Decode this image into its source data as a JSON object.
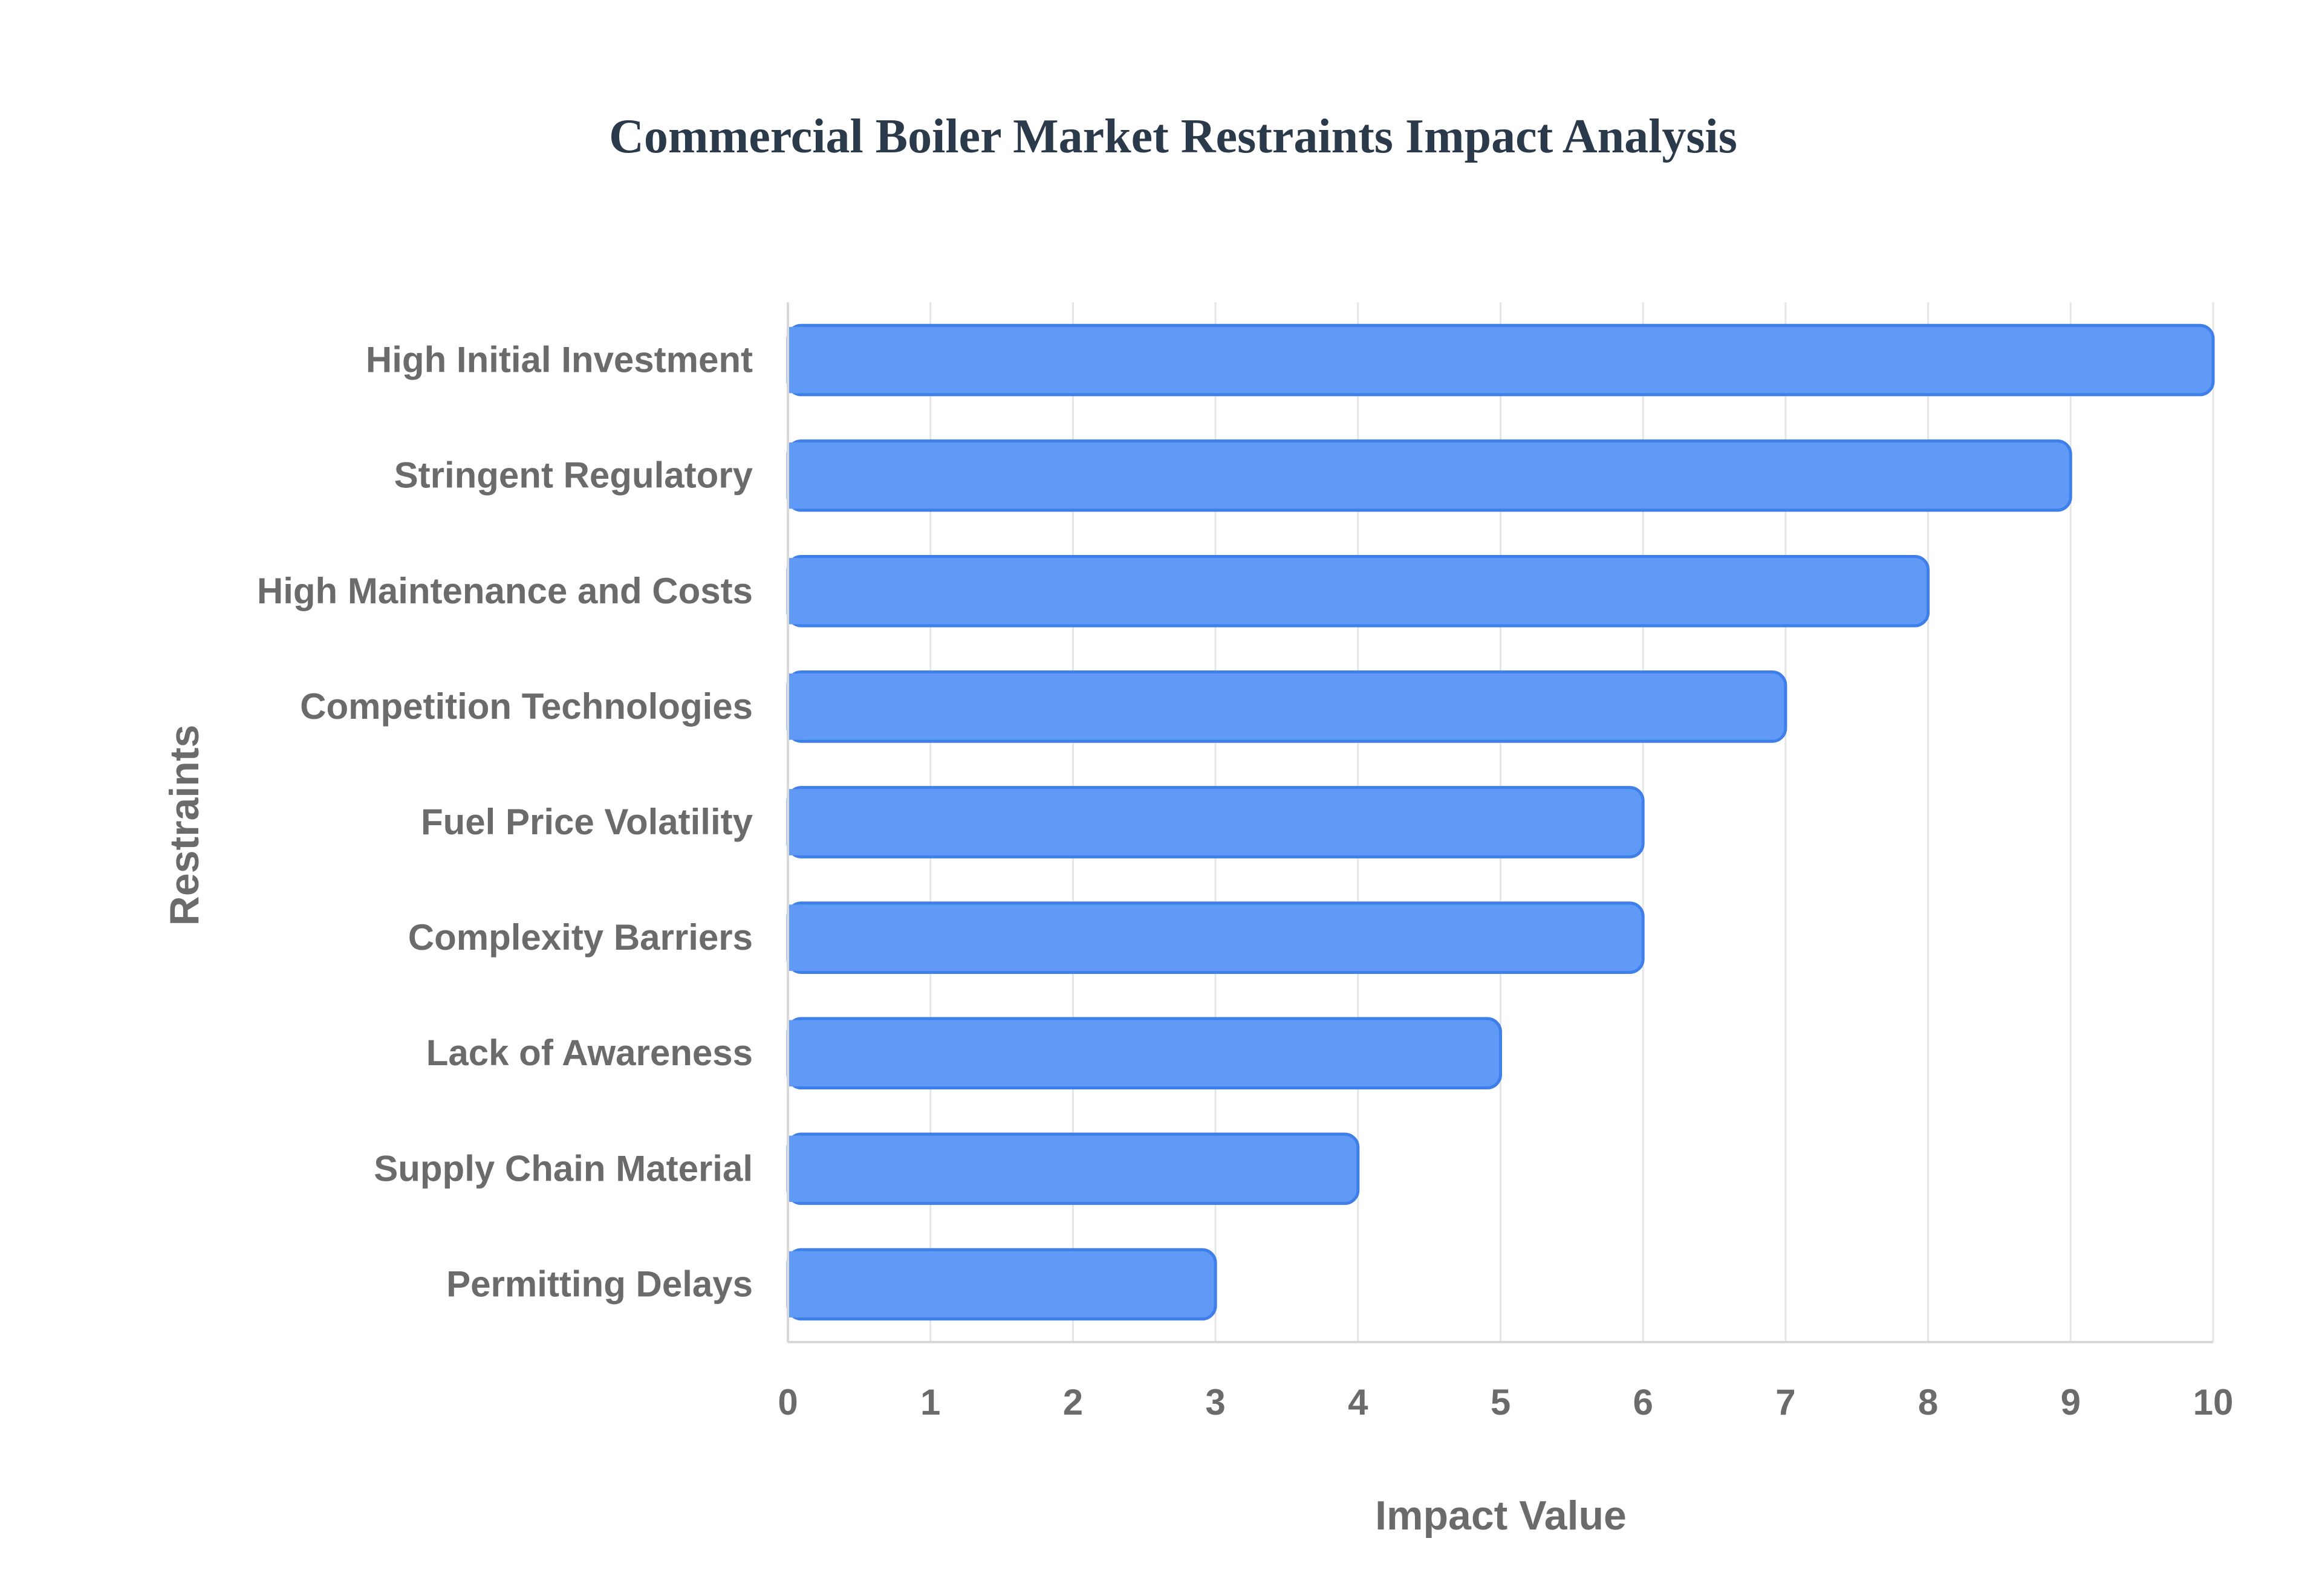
{
  "chart_data": {
    "type": "bar",
    "orientation": "horizontal",
    "title": "Commercial Boiler Market Restraints Impact Analysis",
    "xlabel": "Impact Value",
    "ylabel": "Restraints",
    "categories": [
      "High Initial Investment",
      "Stringent Regulatory",
      "High Maintenance and Costs",
      "Competition Technologies",
      "Fuel Price Volatility",
      "Complexity Barriers",
      "Lack of Awareness",
      "Supply Chain Material",
      "Permitting Delays"
    ],
    "values": [
      10,
      9,
      8,
      7,
      6,
      6,
      5,
      4,
      3
    ],
    "xlim": [
      0,
      10
    ],
    "xticks": [
      "0",
      "1",
      "2",
      "3",
      "4",
      "5",
      "6",
      "7",
      "8",
      "9",
      "10"
    ],
    "grid": true,
    "legend": "none"
  },
  "colors": {
    "bar_fill": "#6199f7",
    "bar_stroke": "#3f7fe9",
    "title": "#2b3a4a",
    "axis_text": "#6b6b6b",
    "grid": "#e6e6e6"
  }
}
